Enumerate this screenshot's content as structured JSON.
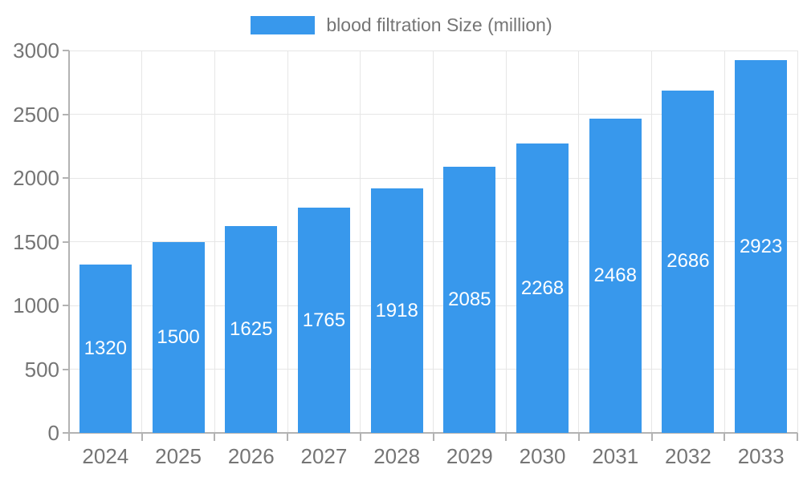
{
  "chart_data": {
    "type": "bar",
    "title": "",
    "legend": {
      "label": "blood filtration Size (million)",
      "position": "top-center",
      "swatch_color": "#3898ec"
    },
    "categories": [
      "2024",
      "2025",
      "2026",
      "2027",
      "2028",
      "2029",
      "2030",
      "2031",
      "2032",
      "2033"
    ],
    "series": [
      {
        "name": "blood filtration Size (million)",
        "values": [
          1320,
          1500,
          1625,
          1765,
          1918,
          2085,
          2268,
          2468,
          2686,
          2923
        ]
      }
    ],
    "xlabel": "",
    "ylabel": "",
    "ylim": [
      0,
      3000
    ],
    "y_ticks": [
      0,
      500,
      1000,
      1500,
      2000,
      2500,
      3000
    ],
    "grid": true,
    "value_labels_shown": true,
    "colors": {
      "bar": "#3898ec",
      "value_label": "#ffffff",
      "axis_text": "#757575",
      "grid_line": "#e6e6e6",
      "axis_line": "#b3b3b3",
      "background": "#ffffff"
    }
  }
}
